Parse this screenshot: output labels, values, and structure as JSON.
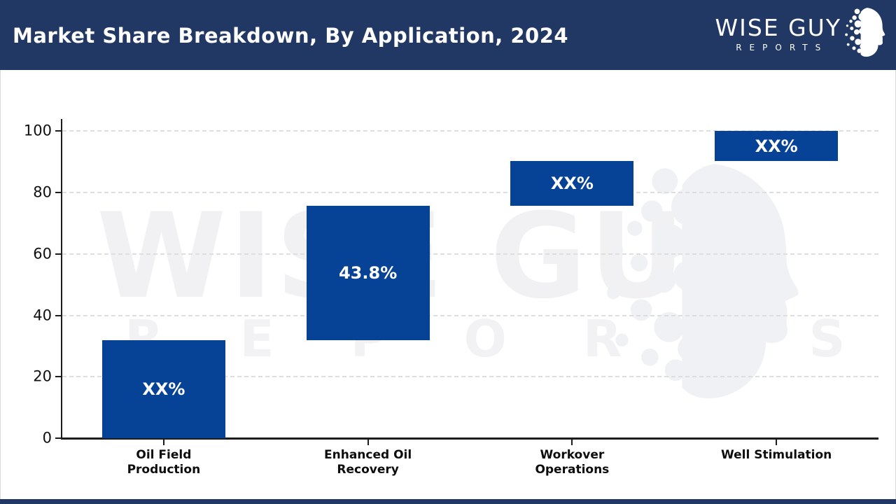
{
  "header": {
    "title": "Market Share Breakdown, By Application, 2024"
  },
  "logo": {
    "line1": "WISE GUY",
    "line2": "REPORTS"
  },
  "watermark": {
    "line1": "WISE GUY",
    "line2": "R E P O R T S"
  },
  "theme": {
    "header_bg": "#213764",
    "bar_color": "#064296",
    "axis_color": "#1c1c1c",
    "gridline_color": "#dedede",
    "watermark_color": "#f1f1f4"
  },
  "chart_data": {
    "type": "bar",
    "subtype": "waterfall-breakdown",
    "title": "Market Share Breakdown, By Application, 2024",
    "categories": [
      "Oil Field Production",
      "Enhanced Oil Recovery",
      "Workover Operations",
      "Well Stimulation"
    ],
    "segments": [
      {
        "category": "Oil Field Production",
        "label_lines": [
          "Oil Field",
          "Production"
        ],
        "start": 0,
        "end": 31.9,
        "value_label": "XX%"
      },
      {
        "category": "Enhanced Oil Recovery",
        "label_lines": [
          "Enhanced Oil",
          "Recovery"
        ],
        "start": 31.9,
        "end": 75.7,
        "value_label": "43.8%"
      },
      {
        "category": "Workover Operations",
        "label_lines": [
          "Workover",
          "Operations"
        ],
        "start": 75.7,
        "end": 90.2,
        "value_label": "XX%"
      },
      {
        "category": "Well Stimulation",
        "label_lines": [
          "Well Stimulation"
        ],
        "start": 90.2,
        "end": 100,
        "value_label": "XX%"
      }
    ],
    "yticks": [
      0,
      20,
      40,
      60,
      80,
      100
    ],
    "ylim": [
      0,
      104
    ],
    "xlabel": "",
    "ylabel": "",
    "grid": "horizontal-dashed",
    "legend": "none"
  }
}
